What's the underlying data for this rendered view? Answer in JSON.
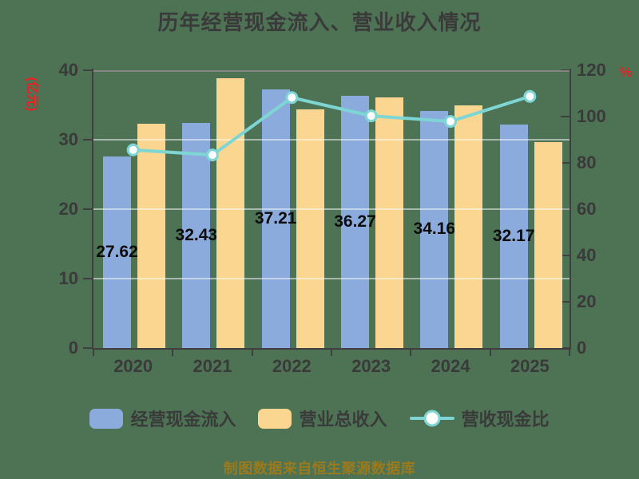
{
  "title": "历年经营现金流入、营业收入情况",
  "footer": "制图数据来自恒生聚源数据库",
  "colors": {
    "background": "#4d7354",
    "bar_cash": "#8cabdd",
    "bar_revenue": "#fad690",
    "line": "#7ed6d4",
    "marker_fill": "#ffffff",
    "axis": "#3f3f3f",
    "text": "#3a3a3a",
    "unit_red": "#e82222",
    "grid": "rgba(255,255,255,0.5)",
    "grid_top": "#858585",
    "data_label": "#0c0c0c",
    "footer_text": "#997a1e"
  },
  "left_axis": {
    "unit_label": "(亿元)",
    "ticks": [
      0,
      10,
      20,
      30,
      40
    ],
    "max": 40
  },
  "right_axis": {
    "unit_label": "%",
    "ticks": [
      0,
      20,
      40,
      60,
      80,
      100,
      120
    ],
    "max": 120
  },
  "legend": [
    {
      "label": "经营现金流入",
      "type": "bar",
      "color": "#8cabdd"
    },
    {
      "label": "营业总收入",
      "type": "bar",
      "color": "#fad690"
    },
    {
      "label": "营收现金比",
      "type": "line",
      "color": "#7ed6d4"
    }
  ],
  "chart_data": {
    "type": "bar+line combo",
    "title": "历年经营现金流入、营业收入情况",
    "categories": [
      "2020",
      "2021",
      "2022",
      "2023",
      "2024",
      "2025"
    ],
    "series": [
      {
        "name": "经营现金流入",
        "type": "bar",
        "axis": "left",
        "unit": "亿元",
        "values": [
          27.62,
          32.43,
          37.21,
          36.27,
          34.16,
          32.17
        ],
        "labels": [
          "27.62",
          "32.43",
          "37.21",
          "36.27",
          "34.16",
          "32.17"
        ]
      },
      {
        "name": "营业总收入",
        "type": "bar",
        "axis": "left",
        "unit": "亿元",
        "values": [
          32.3,
          38.9,
          34.4,
          36.1,
          34.9,
          29.6
        ]
      },
      {
        "name": "营收现金比",
        "type": "line",
        "axis": "right",
        "unit": "%",
        "values": [
          85.6,
          83.4,
          108.2,
          100.3,
          97.9,
          108.7
        ]
      }
    ],
    "left_ylim": [
      0,
      40
    ],
    "right_ylim": [
      0,
      120
    ],
    "grid": true,
    "legend_position": "bottom"
  }
}
